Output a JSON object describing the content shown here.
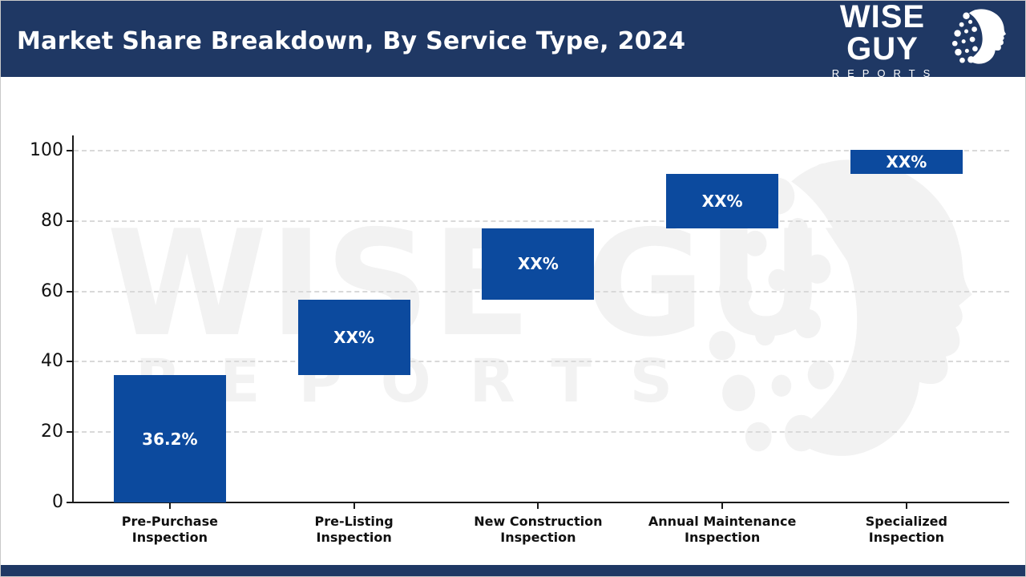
{
  "header": {
    "title": "Market Share Breakdown, By Service Type, 2024",
    "logo": {
      "wordmark": "WISE GUY",
      "subtext": "REPORTS",
      "head_icon": "dotted-head-profile"
    }
  },
  "watermark": {
    "wordmark": "WISE GUY",
    "subtext": "REPORTS",
    "head_icon": "dotted-head-profile"
  },
  "colors": {
    "header_bg": "#1f3864",
    "footer_bg": "#1f3864",
    "bar": "#0c4a9e",
    "bar_label": "#ffffff",
    "grid": "#d9d9d9",
    "axis": "#1a1a1a",
    "watermark": "#f2f2f2"
  },
  "chart_data": {
    "type": "bar",
    "variant": "waterfall",
    "title": "Market Share Breakdown, By Service Type, 2024",
    "categories": [
      "Pre-Purchase Inspection",
      "Pre-Listing Inspection",
      "New Construction Inspection",
      "Annual Maintenance Inspection",
      "Specialized Inspection"
    ],
    "category_lines": [
      [
        "Pre-Purchase",
        "Inspection"
      ],
      [
        "Pre-Listing",
        "Inspection"
      ],
      [
        "New Construction",
        "Inspection"
      ],
      [
        "Annual Maintenance",
        "Inspection"
      ],
      [
        "Specialized",
        "Inspection"
      ]
    ],
    "segments": [
      {
        "start": 0,
        "end": 36.2,
        "label": "36.2%"
      },
      {
        "start": 36.2,
        "end": 57.6,
        "label": "XX%"
      },
      {
        "start": 57.6,
        "end": 78.0,
        "label": "XX%"
      },
      {
        "start": 78.0,
        "end": 93.3,
        "label": "XX%"
      },
      {
        "start": 93.3,
        "end": 100.2,
        "label": "XX%"
      }
    ],
    "ylabel": "",
    "xlabel": "",
    "yticks": [
      0,
      20,
      40,
      60,
      80,
      100
    ],
    "ylim": [
      0,
      105
    ],
    "grid": true,
    "grid_style": "dashed",
    "legend": false
  }
}
